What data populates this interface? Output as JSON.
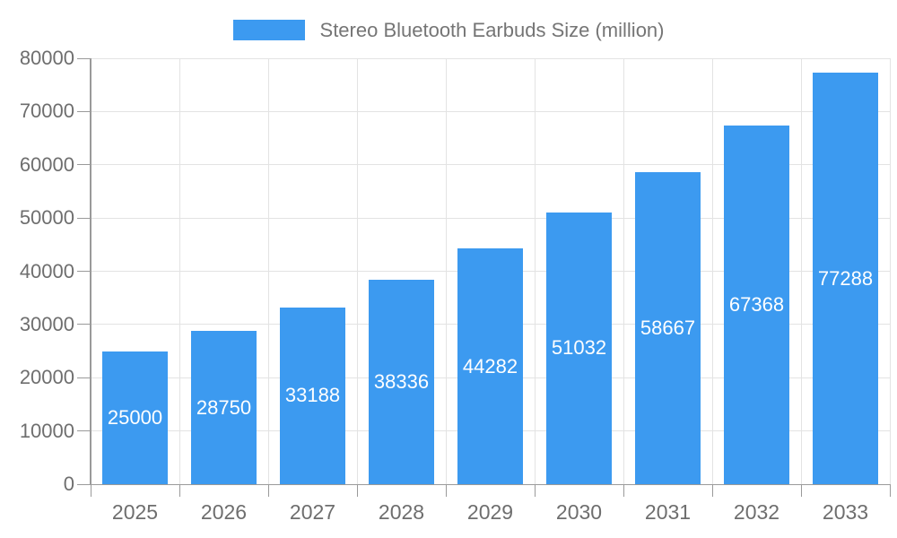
{
  "chart_data": {
    "type": "bar",
    "title": "Stereo Bluetooth Earbuds Size (million)",
    "categories": [
      "2025",
      "2026",
      "2027",
      "2028",
      "2029",
      "2030",
      "2031",
      "2032",
      "2033"
    ],
    "values": [
      25000,
      28750,
      33188,
      38336,
      44282,
      51032,
      58667,
      67368,
      77288
    ],
    "xlabel": "",
    "ylabel": "",
    "ylim": [
      0,
      80000
    ],
    "yticks": [
      0,
      10000,
      20000,
      30000,
      40000,
      50000,
      60000,
      70000,
      80000
    ],
    "grid": "on",
    "legend_position": "top-center",
    "colors": {
      "bar": "#3c9af0",
      "value_label": "#ffffff",
      "axis": "#9a9a9a",
      "grid": "#e3e3e3",
      "tick_text": "#6e6e6e",
      "legend_text": "#757575",
      "background": "#ffffff"
    }
  }
}
